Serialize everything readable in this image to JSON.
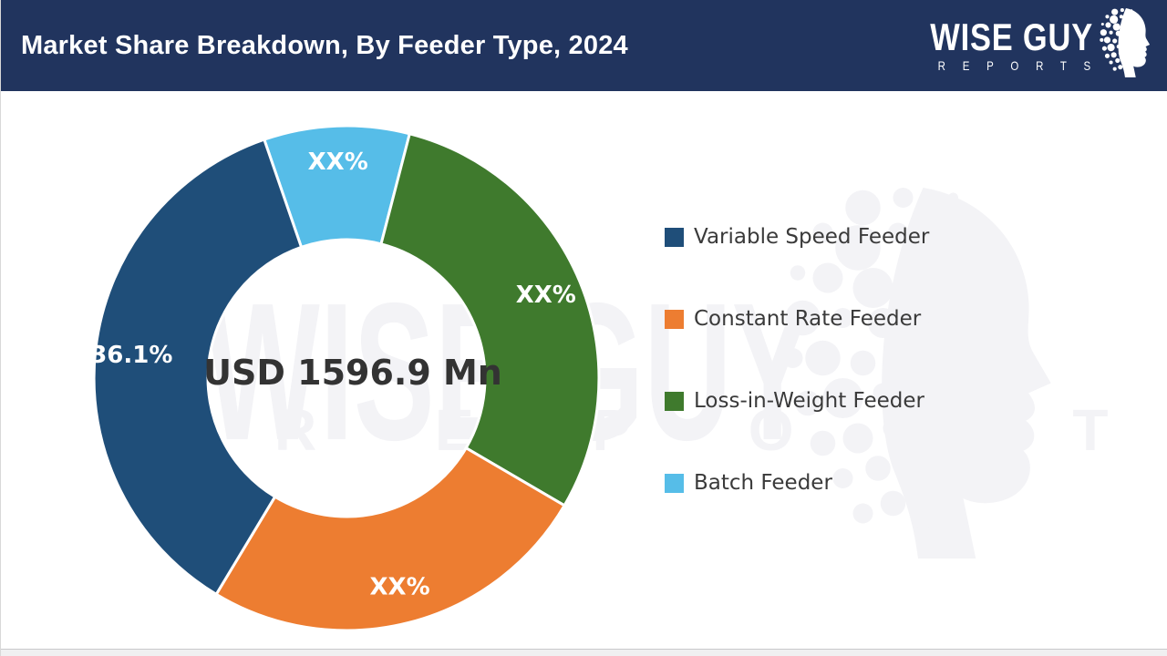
{
  "header": {
    "title": "Market Share Breakdown, By Feeder Type, 2024",
    "logo": {
      "line1": "WISE GUY",
      "line2": "R E P O R T S"
    }
  },
  "watermark": {
    "line1": "WISE GUY",
    "line2": "R E P O R T S"
  },
  "colors": {
    "header_bg": "#21345E",
    "variable_speed_feeder": "#1F4E79",
    "constant_rate_feeder": "#ED7D31",
    "loss_in_weight_feeder": "#3F7A2D",
    "batch_feeder": "#56BDE8",
    "legend_text": "#3A3A3A",
    "center_text": "#333333",
    "watermark": "#F3F3F6"
  },
  "chart_data": {
    "type": "pie",
    "subtype": "donut",
    "title": "Market Share Breakdown, By Feeder Type, 2024",
    "center_label": "USD 1596.9 Mn",
    "start_angle_deg": -19,
    "legend_position": "right",
    "segments": [
      {
        "label": "Batch Feeder",
        "display_pct": "XX%",
        "value_pct_est": 9.3,
        "color": "#56BDE8"
      },
      {
        "label": "Loss-in-Weight Feeder",
        "display_pct": "XX%",
        "value_pct_est": 29.4,
        "color": "#3F7A2D"
      },
      {
        "label": "Constant Rate Feeder",
        "display_pct": "XX%",
        "value_pct_est": 25.2,
        "color": "#ED7D31"
      },
      {
        "label": "Variable Speed Feeder",
        "display_pct": "36.1%",
        "value_pct_est": 36.1,
        "color": "#1F4E79"
      }
    ],
    "legend": [
      {
        "label": "Variable Speed Feeder",
        "color": "#1F4E79"
      },
      {
        "label": "Constant Rate Feeder",
        "color": "#ED7D31"
      },
      {
        "label": "Loss-in-Weight Feeder",
        "color": "#3F7A2D"
      },
      {
        "label": "Batch Feeder",
        "color": "#56BDE8"
      }
    ]
  }
}
